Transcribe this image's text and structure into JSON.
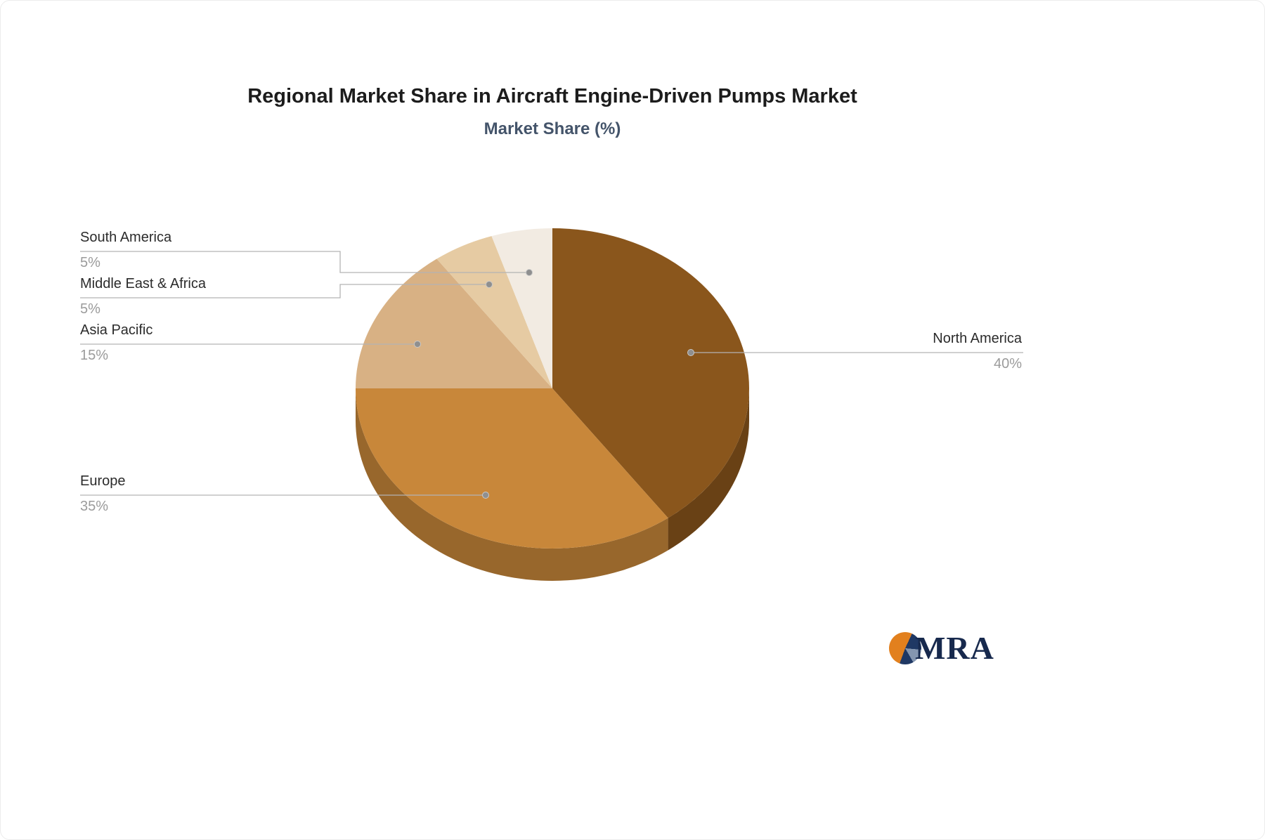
{
  "title": "Regional Market Share in Aircraft Engine-Driven Pumps Market",
  "subtitle": "Market Share (%)",
  "logo": {
    "text": "MRA"
  },
  "chart_data": {
    "type": "pie",
    "style": "3d",
    "title": "Regional Market Share in Aircraft Engine-Driven Pumps Market",
    "subtitle": "Market Share (%)",
    "unit": "%",
    "categories": [
      "North America",
      "Europe",
      "Asia Pacific",
      "Middle East & Africa",
      "South America"
    ],
    "values": [
      40,
      35,
      15,
      5,
      5
    ],
    "labels": [
      "40%",
      "35%",
      "15%",
      "5%",
      "5%"
    ],
    "colors": [
      "#8a561c",
      "#c8873a",
      "#d8b184",
      "#e6cba3",
      "#f2ebe2"
    ],
    "start_angle_deg": 0,
    "direction": "clockwise",
    "legend": "none",
    "callout_line_color": "#b3b3b3",
    "callout_dot_color": "#8f8f8f",
    "label_text_color": "#2b2b2b",
    "value_text_color": "#9b9b9b"
  }
}
